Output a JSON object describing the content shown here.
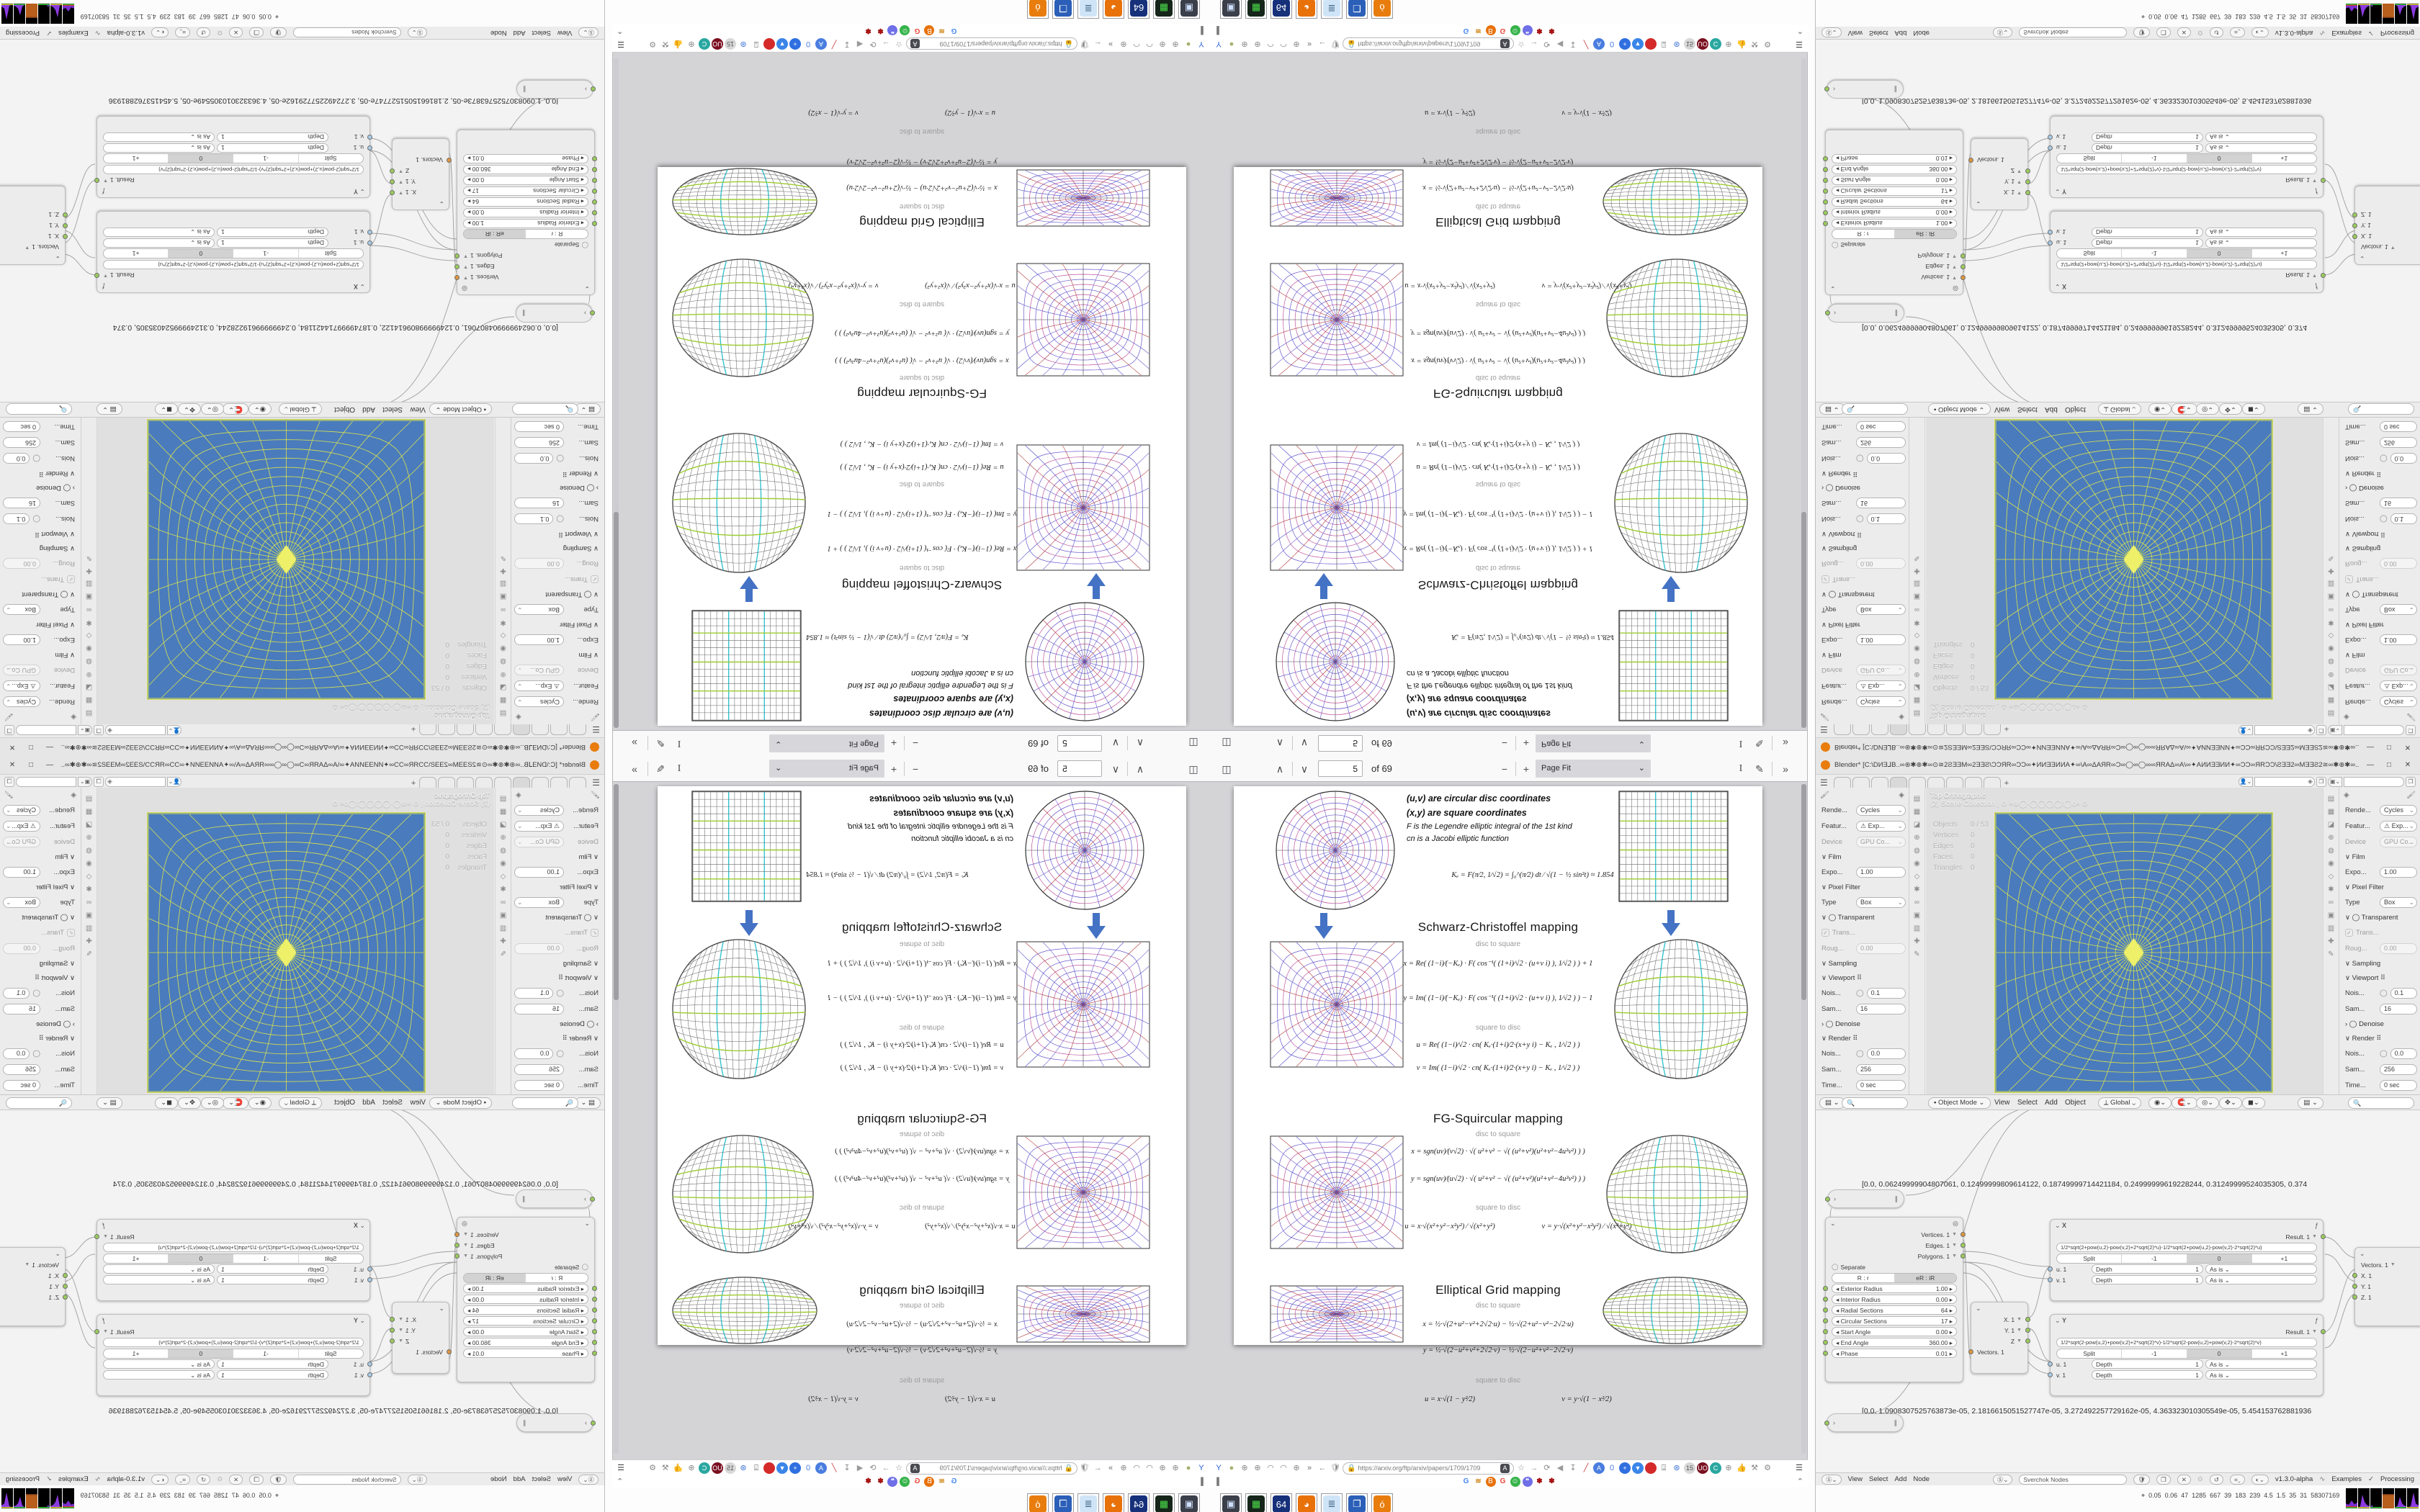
{
  "meta": {
    "montage": "2x2 mirrored desktop screenshot; bottom-right quadrant is the unmirrored original"
  },
  "pdf_viewer": {
    "toolbar": {
      "page_value": "5",
      "page_total_label": "of 69",
      "zoom_label": "Page Fit",
      "icons": {
        "sidebar": "◫",
        "prev": "∧",
        "next": "∨",
        "zoom_out": "−",
        "zoom_in": "+",
        "chevron": "⌄",
        "text_tool": "I",
        "draw_tool": "✎",
        "more_tools": "»"
      }
    },
    "paper": {
      "intro": [
        "(u,v)  are circular disc coordinates",
        "(x,y)  are square coordinates",
        "F  is the Legendre elliptic integral of the 1st kind",
        "cn  is a Jacobi elliptic function"
      ],
      "ke_formula": "Kₑ = F(π∕2, 1∕√2) = ∫₀^(π∕2) dt ∕ √(1 − ½ sin²t)  ≈ 1.854",
      "label_disc_to_square": "disc to square",
      "label_square_to_disc": "square to disc",
      "sections": [
        {
          "title": "Schwarz-Christoffel mapping",
          "d2s": [
            "x = Re( (1−i)∕(−Kₑ) · F( cos⁻¹( (1+i)∕√2 · (u+v i) ), 1∕√2 ) ) + 1",
            "y = Im( (1−i)∕(−Kₑ) · F( cos⁻¹( (1+i)∕√2 · (u+v i) ), 1∕√2 ) ) − 1"
          ],
          "s2d": [
            "u = Re( (1−i)∕√2 · cn( Kₑ·(1+i)∕2·(x+y i) − Kₑ , 1∕√2 ) )",
            "v = Im( (1−i)∕√2 · cn( Kₑ·(1+i)∕2·(x+y i) − Kₑ , 1∕√2 ) )"
          ]
        },
        {
          "title": "FG-Squircular mapping",
          "d2s": [
            "x = sgn(uv)∕(v√2) · √( u²+v² − √( (u²+v²)(u²+v²−4u²v²) ) )",
            "y = sgn(uv)∕(u√2) · √( u²+v² − √( (u²+v²)(u²+v²−4u²v²) ) )"
          ],
          "s2d": [
            "u = x·√(x²+y²−x²y²) ∕ √(x²+y²)",
            "v = y·√(x²+y²−x²y²) ∕ √(x²+y²)"
          ]
        },
        {
          "title": "Elliptical Grid mapping",
          "d2s": [
            "x = ½·√(2+u²−v²+2√2·u) − ½·√(2+u²−v²−2√2·u)",
            "y = ½·√(2−u²+v²+2√2·v) − ½·√(2−u²+v²−2√2·v)"
          ],
          "s2d": [
            "u = x·√(1 − y²∕2)",
            "v = y·√(1 − x²∕2)"
          ]
        }
      ]
    }
  },
  "browser": {
    "url": "https://arxiv.org/ftp/arxiv/papers/1709/1709",
    "pause_glyph": "∥",
    "collapse_glyph": "⌃",
    "nav_icons": [
      {
        "name": "v-logo-icon",
        "g": "Y",
        "fg": "#2b5fd9"
      },
      {
        "name": "privacy-circle-icon",
        "g": "●",
        "fg": "#a3b16a"
      },
      {
        "name": "globe-icon",
        "g": "⊕",
        "fg": "#8a8a8a"
      },
      {
        "name": "globe-icon",
        "g": "⊕",
        "fg": "#8a8a8a"
      },
      {
        "name": "gauge-icon",
        "g": "◠",
        "fg": "#7f7f7f"
      },
      {
        "name": "gauge-icon",
        "g": "◠",
        "fg": "#7f7f7f"
      },
      {
        "name": "globe-icon",
        "g": "⊕",
        "fg": "#8a8a8a"
      },
      {
        "name": "overflow-chevrons-icon",
        "g": "»",
        "fg": "#6f6f6f"
      },
      {
        "name": "back-icon",
        "g": "←",
        "fg": "#8a8a8a"
      },
      {
        "name": "shield-icon",
        "g": "🛡",
        "fg": "#8a8a8a"
      }
    ],
    "after_url_icons": [
      {
        "name": "bookmark-star-icon",
        "g": "☆",
        "fg": "#8a8a8a"
      },
      {
        "name": "forward-icon",
        "g": "→",
        "fg": "#9a9a9a"
      },
      {
        "name": "reload-icon",
        "g": "⟳",
        "fg": "#8a8a8a"
      },
      {
        "name": "speaker-icon",
        "g": "◀",
        "fg": "#9a9a9a"
      },
      {
        "name": "download-icon",
        "g": "↧",
        "fg": "#8a8a8a"
      },
      {
        "name": "crayon-icon",
        "g": "╱",
        "fg": "#c84444"
      },
      {
        "name": "translate-icon",
        "g": "A",
        "fg": "#fff",
        "bg": "#4a7de0"
      },
      {
        "name": "zero-oval-icon",
        "g": "0",
        "fg": "#4a7de0"
      },
      {
        "name": "plus-circle-icon",
        "g": "+",
        "fg": "#fff",
        "bg": "#2f6fe0"
      },
      {
        "name": "shield-down-icon",
        "g": "▼",
        "fg": "#fff",
        "bg": "#3a85e8"
      },
      {
        "name": "red-circle-icon",
        "g": " ",
        "fg": "#fff",
        "bg": "#d42a2a"
      },
      {
        "name": "trash-icon",
        "g": "⍗",
        "fg": "#4a4a4a"
      },
      {
        "name": "globe-color-icon",
        "g": "⊛",
        "fg": "#3f74d6"
      },
      {
        "name": "box-15-icon",
        "g": "15",
        "fg": "#555",
        "bg": "#d8d8d8"
      },
      {
        "name": "uo-shield-icon",
        "g": "UO",
        "fg": "#fff",
        "bg": "#7a1020"
      },
      {
        "name": "c-circle-icon",
        "g": "C",
        "fg": "#fff",
        "bg": "#2aa7a0"
      },
      {
        "name": "globe-icon",
        "g": "⊕",
        "fg": "#8a8a8a"
      },
      {
        "name": "thumb-icon",
        "g": "👍",
        "fg": "#8a8a8a"
      },
      {
        "name": "wrench-icon",
        "g": "⚒",
        "fg": "#8a8a8a"
      },
      {
        "name": "gear-icon",
        "g": "⚙",
        "fg": "#8a8a8a"
      }
    ],
    "bookmark_icons": [
      {
        "name": "google-icon",
        "g": "G",
        "fg": "#4285f4"
      },
      {
        "name": "stack-icon",
        "g": "≋",
        "fg": "#cf8a1f"
      },
      {
        "name": "blogger-icon",
        "g": "B",
        "fg": "#fff",
        "bg": "#e8710a"
      },
      {
        "name": "google-icon",
        "g": "G",
        "fg": "#ea4335"
      },
      {
        "name": "smiley-icon",
        "g": "☺",
        "fg": "#fff",
        "bg": "#36b34a"
      },
      {
        "name": "chat-bubble-icon",
        "g": "❝",
        "fg": "#fff",
        "bg": "#6f6fe8"
      },
      {
        "name": "gear-flower-icon",
        "g": "✽",
        "fg": "#a61212"
      },
      {
        "name": "gear-flower-icon",
        "g": "✽",
        "fg": "#a61212"
      }
    ]
  },
  "taskbar": {
    "items": [
      {
        "name": "screenshot-tool",
        "g": "▣",
        "fg": "#cfe0ff",
        "bg": "#3b3f4a"
      },
      {
        "name": "system-monitor",
        "g": "▦",
        "fg": "#4be04b",
        "bg": "#15251a"
      },
      {
        "name": "hex-editor-64",
        "g": "64",
        "fg": "#fff",
        "bg": "#16307a"
      },
      {
        "name": "firefox",
        "g": "◕",
        "fg": "#fff",
        "bg": "#e8710a"
      },
      {
        "name": "notepad",
        "g": "≣",
        "fg": "#345a7a",
        "bg": "#cfe4f7"
      },
      {
        "name": "file-explorer",
        "g": "❐",
        "fg": "#fff",
        "bg": "#2b5fb8"
      },
      {
        "name": "blender",
        "g": "ó",
        "fg": "#fff",
        "bg": "#e87d0d"
      }
    ]
  },
  "blender": {
    "title": "Blender* [C:\\DИƎ⅃B..∞⊛✱⊕✱∞⊙≅2ƧƎƎM∞2ƎƎƧ\\ƆƆЯR∞ƆƆ∞✦ИИƎƎИИA✦∞\\A∞ΔAЯR∞Ɔ∞◯∞◯∞∞ЯRAΔ∞A\\∞✦AИИƎƎИИ✦∞ƆƆ∞ЯRƆƆ\\ƧƎƎ2∞MƎƎƧ2≅∞✱⊕✱∞..",
    "window_buttons": [
      "—",
      "□",
      "✕"
    ],
    "property_tab_glyphs": [
      "▤",
      "▦",
      "◪",
      "⊕",
      "◍",
      "◉",
      "◇",
      "✱",
      "∞",
      "▣",
      "▥",
      "✚",
      "✎"
    ],
    "viewport": {
      "overlay_line1": "Top Orthographic",
      "overlay_line2": "(2) Scene Collection | ⊙ ⌗⊕◯·◯◯◯◯:◯o⌗ ⊙",
      "stats": [
        [
          "Objects",
          "0 / 53"
        ],
        [
          "Vertices",
          "0"
        ],
        [
          "Edges",
          "0"
        ],
        [
          "Faces",
          "0"
        ],
        [
          "Triangles",
          "0"
        ]
      ],
      "header": {
        "mode": "Object Mode",
        "menus": [
          "View",
          "Select",
          "Add",
          "Object"
        ],
        "orientation": "Global"
      }
    },
    "properties": {
      "rows": [
        {
          "k": "select",
          "l": "Rende...",
          "v": "Cycles"
        },
        {
          "k": "select",
          "l": "Featur...",
          "v": "⚠ Exp..."
        },
        {
          "k": "select",
          "l": "Device",
          "v": "GPU Co...",
          "dim": 1
        },
        {
          "k": "head",
          "l": "Film"
        },
        {
          "k": "field",
          "l": "Expo...",
          "v": "1.00"
        },
        {
          "k": "head",
          "l": "Pixel Filter"
        },
        {
          "k": "select",
          "l": "Type",
          "v": "Box"
        },
        {
          "k": "headtoggle",
          "l": "Transparent"
        },
        {
          "k": "check",
          "l": "Trans...",
          "v": "✓",
          "dim": 1
        },
        {
          "k": "field",
          "l": "Roug...",
          "v": "0.00",
          "dim": 1
        },
        {
          "k": "head",
          "l": "Sampling"
        },
        {
          "k": "sub",
          "l": "Viewport"
        },
        {
          "k": "fieldc",
          "l": "Nois...",
          "v": "0.1"
        },
        {
          "k": "field",
          "l": "Sam...",
          "v": "16"
        },
        {
          "k": "headcol",
          "l": "Denoise"
        },
        {
          "k": "sub",
          "l": "Render"
        },
        {
          "k": "fieldc",
          "l": "Nois...",
          "v": "0.0"
        },
        {
          "k": "field",
          "l": "Sam...",
          "v": "256"
        },
        {
          "k": "field",
          "l": "Time...",
          "v": "0 sec"
        }
      ]
    },
    "node_editor": {
      "menus": [
        "View",
        "Select",
        "Add",
        "Node"
      ],
      "tree_name": "Sverchok Nodes",
      "version": "v1.3.0-alpha",
      "examples_label": "Examples",
      "processing_label": "Processing",
      "array_top": "[0.0, 0.06249999904807061, 0.12499999809614122, 0.18749999714421184, 0.24999999619228244, 0.31249999524035305, 0.374",
      "array_bottom": "[0.0, 1.0908307525763873e-05, 2.1816615051527747e-05, 3.272492257729162e-05, 4.363323010305549e-05, 5.454153762881936",
      "torus": {
        "outputs": [
          "Vertices. 1",
          "Edges. 1",
          "Polygons. 1"
        ],
        "separate": "Separate",
        "mode_buttons": [
          "R : r",
          "eR : iR"
        ],
        "params": [
          [
            "Exterior Radius",
            "1.00"
          ],
          [
            "Interior Radius",
            "0.00"
          ],
          [
            "Radial Sections",
            "64"
          ],
          [
            "Circular Sections",
            "17"
          ],
          [
            "Start Angle",
            "0.00"
          ],
          [
            "End Angle",
            "360.00"
          ],
          [
            "Phase",
            "0.01"
          ]
        ]
      },
      "vector_in": {
        "rows": [
          "X. 1",
          "Y. 1",
          "Z"
        ],
        "output": "Vectors. 1"
      },
      "formula_x": {
        "title": "X",
        "result": "Result. 1",
        "formula": "1/2*sqrt(2+pow(u,2)-pow(v,2)+2*sqrt(2)*u)-1/2*sqrt(2+pow(u,2)-pow(v,2)-2*sqrt(2)*u)",
        "buttons": [
          "Split",
          "-1",
          "0",
          "+1"
        ],
        "inputs": [
          "u. 1",
          "v. 1"
        ],
        "depth_label": "Depth",
        "depth_value": "1",
        "wrap_label": "As is"
      },
      "formula_y": {
        "title": "Y",
        "result": "Result. 1",
        "formula": "1/2*sqrt(2-pow(u,2)+pow(v,2)+2*sqrt(2)*v)-1/2*sqrt(2-pow(u,2)+pow(v,2)-2*sqrt(2)*v)",
        "buttons": [
          "Split",
          "-1",
          "0",
          "+1"
        ],
        "inputs": [
          "u. 1",
          "v. 1"
        ],
        "depth_label": "Depth",
        "depth_value": "1",
        "wrap_label": "As is"
      },
      "vector_out": {
        "input": "Vectors. 1",
        "rows": [
          "X. 1",
          "Y. 1",
          "Z. 1"
        ]
      }
    },
    "status_icon": "⌖",
    "status_numbers": "0.05  0.06  47  1285  667  39  183  239  4.5  1.5  35  31  58307169"
  },
  "colors": {
    "viewport_blue": "#4a7bbd",
    "grid_yellow": "#d8e24e",
    "grid_yellow_bright": "#eef06a",
    "arrow_blue": "#4472c4",
    "cyan_line": "#35c4cf",
    "green_line": "#9ccb30",
    "violet": "#6a5acd",
    "magenta": "#c0549e",
    "pdf_toolbar_bg": "#f9f9fa",
    "viewer_bg": "#d4d4d7"
  }
}
